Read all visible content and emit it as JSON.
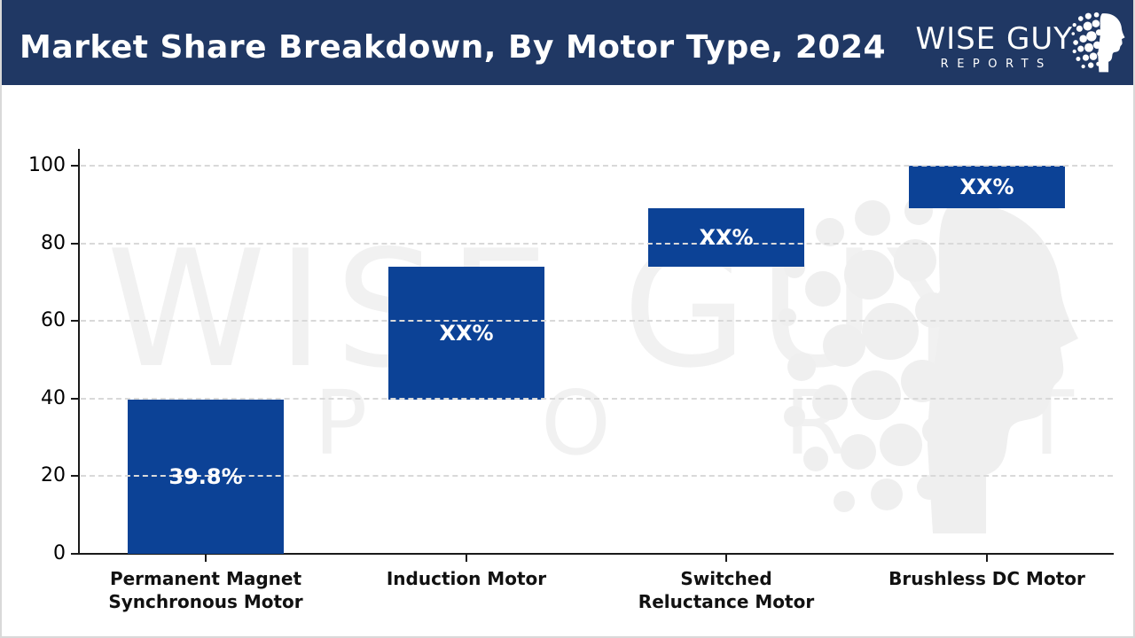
{
  "header": {
    "title": "Market Share Breakdown, By Motor Type, 2024",
    "logo": {
      "line1": "WISE GUY",
      "line2": "REPORTS"
    }
  },
  "watermark": {
    "line1": "WISE GUY",
    "line2": "P O R T S"
  },
  "chart_data": {
    "type": "bar",
    "subtype": "floating-waterfall-segments",
    "title": "Market Share Breakdown, By Motor Type, 2024",
    "categories": [
      [
        "Permanent Magnet",
        "Synchronous Motor"
      ],
      [
        "Induction Motor"
      ],
      [
        "Switched",
        "Reluctance Motor"
      ],
      [
        "Brushless DC Motor"
      ]
    ],
    "segments": [
      {
        "category": "Permanent Magnet Synchronous Motor",
        "start": 0,
        "end": 39.8,
        "label": "39.8%"
      },
      {
        "category": "Induction Motor",
        "start": 39.8,
        "end": 74,
        "label": "XX%"
      },
      {
        "category": "Switched Reluctance Motor",
        "start": 74,
        "end": 89,
        "label": "XX%"
      },
      {
        "category": "Brushless DC Motor",
        "start": 89,
        "end": 100,
        "label": "XX%"
      }
    ],
    "y_ticks": [
      0,
      20,
      40,
      60,
      80,
      100
    ],
    "ylim": [
      0,
      104
    ],
    "xlabel": "",
    "ylabel": "",
    "grid": "horizontal-dashed-above-bars",
    "legend": "none",
    "colors": {
      "bar": "#0c4296",
      "header_bg": "#203864",
      "header_text": "#ffffff",
      "grid": "#d9d9d9",
      "axis": "#1a1a1a",
      "bar_label": "#ffffff",
      "watermark": "#f1f1f1"
    }
  }
}
